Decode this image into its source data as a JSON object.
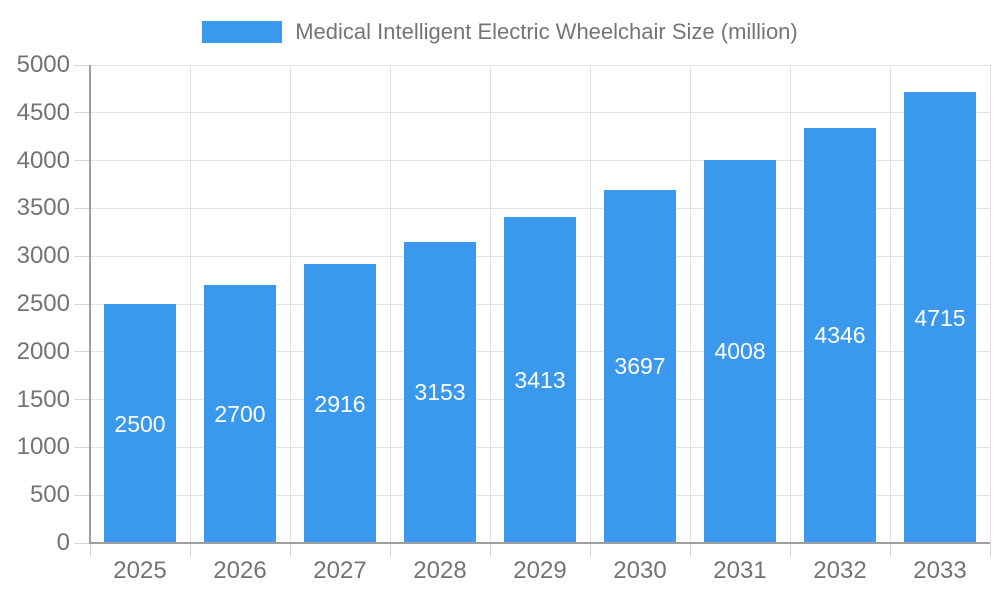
{
  "chart_data": {
    "type": "bar",
    "title": "Medical Intelligent Electric Wheelchair Size (million)",
    "legend_entries": [
      "Medical Intelligent Electric Wheelchair Size (million)"
    ],
    "legend_position": "top-center",
    "categories": [
      "2025",
      "2026",
      "2027",
      "2028",
      "2029",
      "2030",
      "2031",
      "2032",
      "2033"
    ],
    "values": [
      2500,
      2700,
      2916,
      3153,
      3413,
      3697,
      4008,
      4346,
      4715
    ],
    "bar_value_labels_visible": true,
    "bar_value_label_position": "centered-inside-bar",
    "xlabel": "",
    "ylabel": "",
    "ylim": [
      0,
      5000
    ],
    "yticks": [
      0,
      500,
      1000,
      1500,
      2000,
      2500,
      3000,
      3500,
      4000,
      4500,
      5000
    ],
    "grid": true
  },
  "colors": {
    "bar_fill": "#3A99EC",
    "bar_value_text": "#ffffff",
    "grid_line": "#e2e2e2",
    "tick_mark": "#d6d6d6",
    "axis_line": "#9e9e9e",
    "tick_text": "#737373",
    "legend_text": "#757575",
    "background": "#ffffff"
  }
}
